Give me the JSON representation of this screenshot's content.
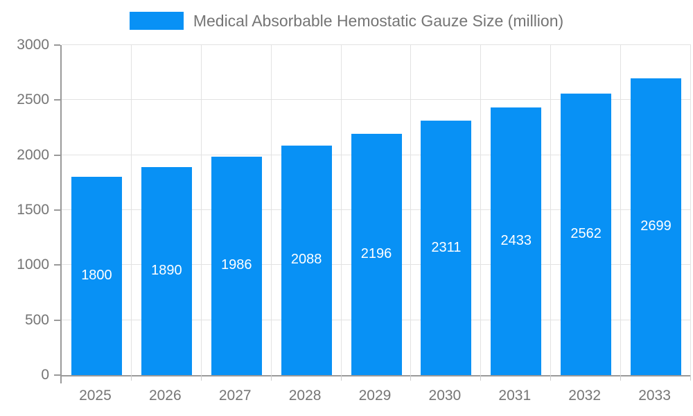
{
  "legend": {
    "label": "Medical Absorbable Hemostatic Gauze Size (million)"
  },
  "chart_data": {
    "type": "bar",
    "title": "Medical Absorbable Hemostatic Gauze Size (million)",
    "categories": [
      "2025",
      "2026",
      "2027",
      "2028",
      "2029",
      "2030",
      "2031",
      "2032",
      "2033"
    ],
    "values": [
      1800,
      1890,
      1986,
      2088,
      2196,
      2311,
      2433,
      2562,
      2699
    ],
    "data_labels": [
      "1800",
      "1890",
      "1986",
      "2088",
      "2196",
      "2311",
      "2433",
      "2562",
      "2699"
    ],
    "xlabel": "",
    "ylabel": "",
    "ylim": [
      0,
      3000
    ],
    "yticks": [
      0,
      500,
      1000,
      1500,
      2000,
      2500,
      3000
    ],
    "grid": true,
    "legend_position": "top",
    "colors": {
      "bar": "#0891f5",
      "bar_label": "#ffffff",
      "axis_text": "#757575",
      "axis_line": "#999999",
      "gridline": "#e2e2e2",
      "background": "#ffffff"
    }
  }
}
